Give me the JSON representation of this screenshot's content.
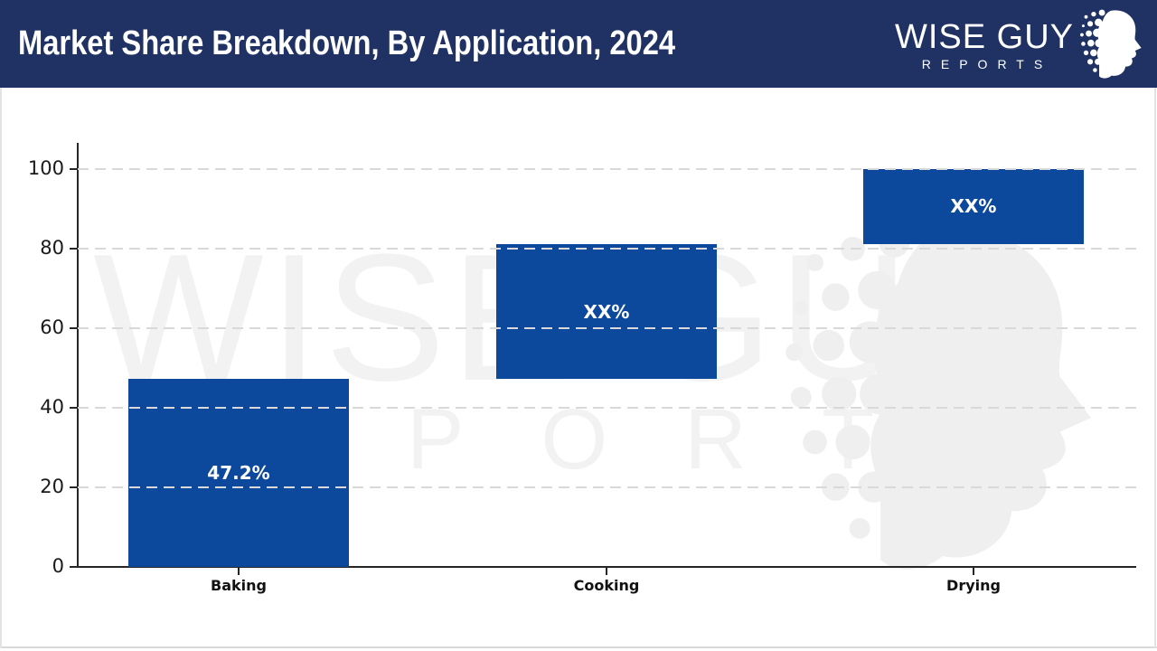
{
  "header": {
    "title": "Market Share Breakdown, By Application, 2024",
    "logo": {
      "line1": "WISE GUY",
      "line2": "REPORTS"
    }
  },
  "watermark": {
    "line1": "WISE GUY",
    "line2": "REPORTS"
  },
  "chart_data": {
    "type": "bar",
    "subtype": "waterfall",
    "title": "Market Share Breakdown, By Application, 2024",
    "categories": [
      "Baking",
      "Cooking",
      "Drying"
    ],
    "segments": [
      {
        "category": "Baking",
        "start": 0,
        "end": 47.2,
        "label": "47.2%"
      },
      {
        "category": "Cooking",
        "start": 47.2,
        "end": 81.2,
        "label": "XX%"
      },
      {
        "category": "Drying",
        "start": 81.2,
        "end": 100,
        "label": "XX%"
      }
    ],
    "yticks": [
      0,
      20,
      40,
      60,
      80,
      100
    ],
    "ylim": [
      0,
      106
    ],
    "grid": "horizontal-dashed",
    "legend": "none",
    "bar_color": "#0c499c",
    "bar_label_color": "#ffffff"
  },
  "colors": {
    "header_bg": "#1f3263",
    "accent_blue": "#0c499c",
    "gridline": "#d9d9d9",
    "axis": "#262626",
    "watermark": "#f2f2f2"
  }
}
